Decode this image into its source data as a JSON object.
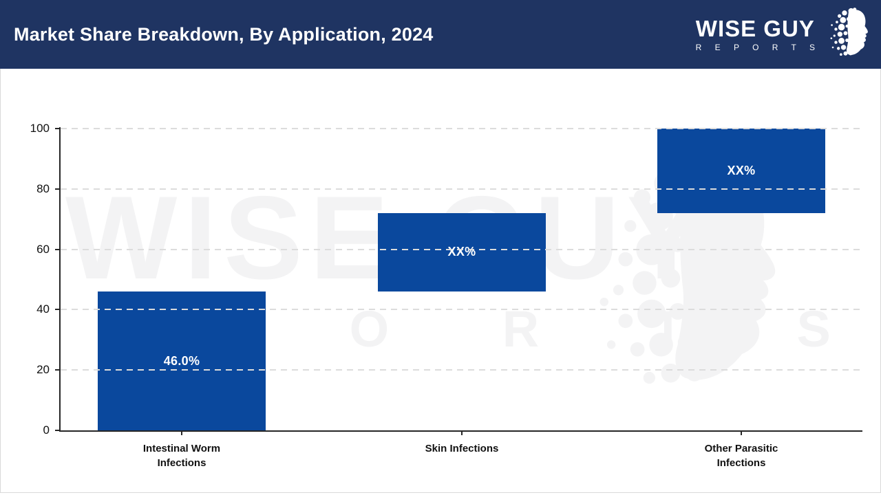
{
  "header": {
    "title": "Market Share Breakdown, By Application, 2024",
    "bg_color": "#1f3462",
    "logo": {
      "name": "WISE GUY",
      "sub": "R E P O R T S"
    }
  },
  "watermark": {
    "line1": "WISE GUY",
    "line2": "P O R T S"
  },
  "chart_data": {
    "type": "bar",
    "subtype": "floating-segment-bars (cumulative market share)",
    "title": "Market Share Breakdown, By Application, 2024",
    "categories": [
      [
        "Intestinal Worm",
        "Infections"
      ],
      [
        "Skin Infections"
      ],
      [
        "Other Parasitic",
        "Infections"
      ]
    ],
    "bars": [
      {
        "category": "Intestinal Worm Infections",
        "start": 0,
        "end": 46,
        "label": "46.0%"
      },
      {
        "category": "Skin Infections",
        "start": 46,
        "end": 72,
        "label": "XX%"
      },
      {
        "category": "Other Parasitic Infections",
        "start": 72,
        "end": 100,
        "label": "XX%"
      }
    ],
    "ylim": [
      0,
      100
    ],
    "yticks": [
      "0",
      "20",
      "40",
      "60",
      "80",
      "100"
    ],
    "ytick_values": [
      0,
      20,
      40,
      60,
      80,
      100
    ],
    "grid": "horizontal dashed, drawn above bars",
    "legend": "none",
    "bar_color": "#0a489d",
    "bar_label_color": "#ffffff",
    "axis_color": "#262626",
    "grid_color": "#dcdcdc"
  }
}
